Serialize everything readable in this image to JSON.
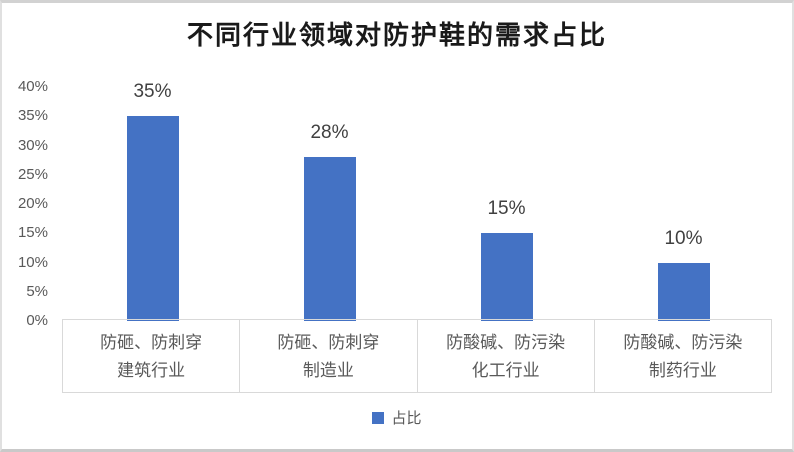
{
  "chart_data": {
    "type": "bar",
    "title": "不同行业领域对防护鞋的需求占比",
    "series_name": "占比",
    "categories": [
      {
        "line1": "防砸、防刺穿",
        "line2": "建筑行业"
      },
      {
        "line1": "防砸、防刺穿",
        "line2": "制造业"
      },
      {
        "line1": "防酸碱、防污染",
        "line2": "化工行业"
      },
      {
        "line1": "防酸碱、防污染",
        "line2": "制药行业"
      }
    ],
    "values": [
      35,
      28,
      15,
      10
    ],
    "data_labels": [
      "35%",
      "28%",
      "15%",
      "10%"
    ],
    "ylim": [
      0,
      40
    ],
    "ytick_values": [
      0,
      5,
      10,
      15,
      20,
      25,
      30,
      35,
      40
    ],
    "ytick_labels": [
      "0%",
      "5%",
      "10%",
      "15%",
      "20%",
      "25%",
      "30%",
      "35%",
      "40%"
    ],
    "grid": false,
    "legend_position": "bottom",
    "bar_color": "#4472C4",
    "colors": {
      "bar": "#4472C4",
      "title_text": "#1a1a1a",
      "axis_text": "#595959",
      "data_label_text": "#404040",
      "axis_border": "#d9d9d9"
    }
  },
  "legend": {
    "label": "占比",
    "swatch_color": "#4472C4"
  }
}
